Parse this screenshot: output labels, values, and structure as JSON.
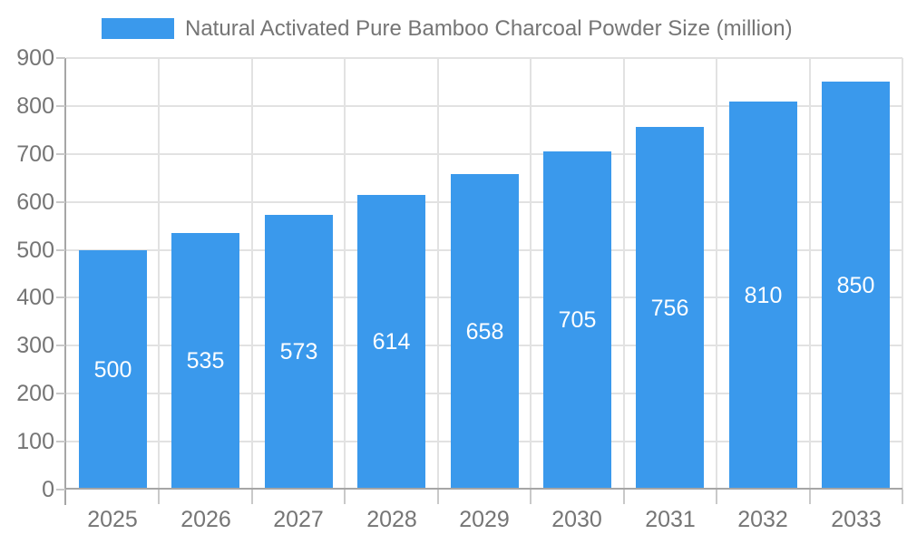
{
  "chart_data": {
    "type": "bar",
    "title": "Natural Activated Pure Bamboo Charcoal Powder Size (million)",
    "categories": [
      "2025",
      "2026",
      "2027",
      "2028",
      "2029",
      "2030",
      "2031",
      "2032",
      "2033"
    ],
    "values": [
      500,
      535,
      573,
      614,
      658,
      705,
      756,
      810,
      850
    ],
    "series": [
      {
        "name": "Natural Activated Pure Bamboo Charcoal Powder Size (million)",
        "values": [
          500,
          535,
          573,
          614,
          658,
          705,
          756,
          810,
          850
        ]
      }
    ],
    "xlabel": "",
    "ylabel": "",
    "ylim": [
      0,
      900
    ],
    "ytick_step": 100,
    "ytick_labels": [
      "0",
      "100",
      "200",
      "300",
      "400",
      "500",
      "600",
      "700",
      "800",
      "900"
    ],
    "grid": "horizontal and vertical, light gray",
    "legend_position": "top-center",
    "value_labels": "white, centered inside bars",
    "colors": {
      "bar": "#3A99EC",
      "axis_text": "#757575",
      "legend_text": "#757575",
      "grid_line": "#E2E2E2",
      "axis_line": "#A6A6A6",
      "tick_line": "#C9C9C9",
      "value_label_text": "#FFFFFF",
      "background": "#FFFFFF"
    }
  }
}
